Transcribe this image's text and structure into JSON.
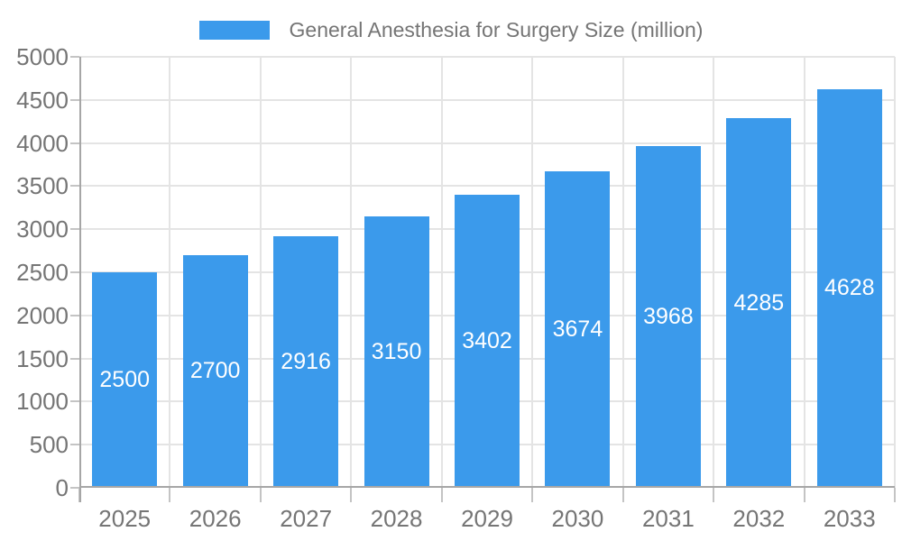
{
  "chart_data": {
    "type": "bar",
    "title": "General Anesthesia for Surgery Size (million)",
    "legend_label": "General Anesthesia for Surgery Size (million)",
    "categories": [
      "2025",
      "2026",
      "2027",
      "2028",
      "2029",
      "2030",
      "2031",
      "2032",
      "2033"
    ],
    "values": [
      2500,
      2700,
      2916,
      3150,
      3402,
      3674,
      3968,
      4285,
      4628
    ],
    "xlabel": "",
    "ylabel": "",
    "ylim": [
      0,
      5000
    ],
    "ytick_step": 500,
    "yticks": [
      0,
      500,
      1000,
      1500,
      2000,
      2500,
      3000,
      3500,
      4000,
      4500,
      5000
    ],
    "grid": true,
    "legend_position": "top-center",
    "value_label_position": "inside-center"
  },
  "colors": {
    "bar": "#3B9AEB",
    "grid": "#E4E4E4",
    "tick": "#C4C4C4",
    "axis": "#A6A6A6",
    "text": "#757575",
    "value_label": "#FFFFFF",
    "background": "#FFFFFF"
  }
}
